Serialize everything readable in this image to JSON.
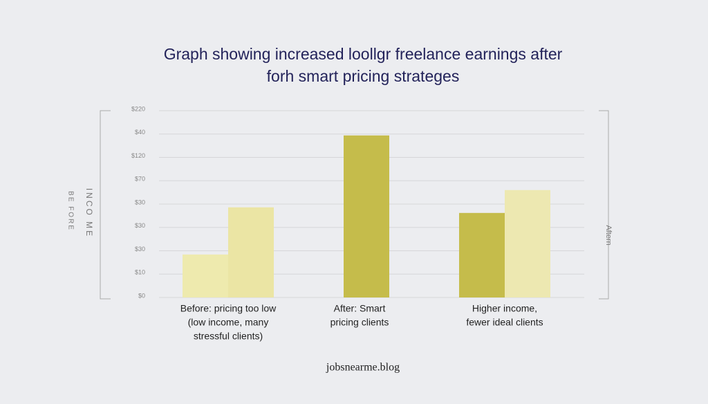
{
  "chart_data": {
    "type": "bar",
    "title": [
      "Graph showing increased loollgr freelance earnings after",
      "forh smart pricing strateges"
    ],
    "side_labels_left": [
      "BE FORE",
      "INCO ME"
    ],
    "side_label_right": "Aftern",
    "footer": "jobsnearme.blog",
    "categories": [
      [
        "Before: pricing too low",
        "(low income, many",
        "stressful clients)"
      ],
      [
        "After: Smart",
        "pricing clients"
      ],
      [
        "Higher income,",
        "fewer ideal clients"
      ]
    ],
    "series": [
      {
        "colors": [
          "#eeeaae",
          "#c5bc4b",
          "#c5bc4b"
        ],
        "values": [
          1.84,
          6.94,
          3.62
        ]
      },
      {
        "colors": [
          "#ebe5a4",
          null,
          "#ede8b1"
        ],
        "values": [
          3.86,
          null,
          4.6
        ]
      }
    ],
    "ylim": [
      0,
      8
    ],
    "yticks": [
      {
        "value": 0,
        "label": "$0"
      },
      {
        "value": 1,
        "label": "$10"
      },
      {
        "value": 2,
        "label": "$30"
      },
      {
        "value": 3,
        "label": "$30"
      },
      {
        "value": 4,
        "label": "$30"
      },
      {
        "value": 5,
        "label": "$70"
      },
      {
        "value": 6,
        "label": "$120"
      },
      {
        "value": 7,
        "label": "$40"
      },
      {
        "value": 8,
        "label": "$220"
      }
    ],
    "grid": true
  }
}
